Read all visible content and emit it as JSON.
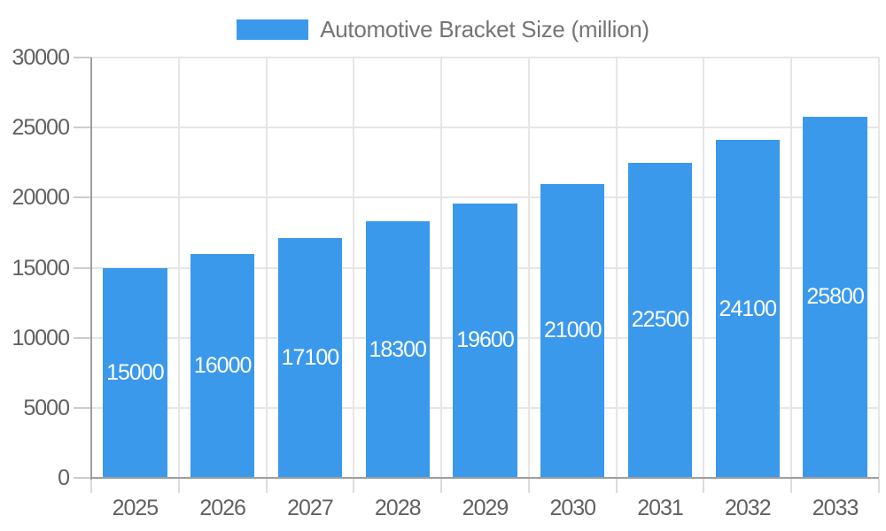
{
  "legend": {
    "label": "Automotive Bracket Size (million)"
  },
  "colors": {
    "bar": "#3B99EC",
    "axis_line": "#9E9E9E",
    "gridline": "#E6E6E6",
    "y_tick": "#CCCCCC",
    "x_tick": "#DCDCDC",
    "axis_label_text": "#616161",
    "legend_text": "#757575",
    "bar_label_text": "#FFFFFF",
    "background": "#FFFFFF"
  },
  "chart_data": {
    "type": "bar",
    "title": "Automotive Bracket Size (million)",
    "series_name": "Automotive Bracket Size (million)",
    "categories": [
      "2025",
      "2026",
      "2027",
      "2028",
      "2029",
      "2030",
      "2031",
      "2032",
      "2033"
    ],
    "values": [
      15000,
      16000,
      17100,
      18300,
      19600,
      21000,
      22500,
      24100,
      25800
    ],
    "bar_labels": [
      "15000",
      "16000",
      "17100",
      "18300",
      "19600",
      "21000",
      "22500",
      "24100",
      "25800"
    ],
    "xlabel": "",
    "ylabel": "",
    "ylim": [
      0,
      30000
    ],
    "y_ticks": [
      0,
      5000,
      10000,
      15000,
      20000,
      25000,
      30000
    ],
    "y_tick_labels": [
      "0",
      "5000",
      "10000",
      "15000",
      "20000",
      "25000",
      "30000"
    ],
    "grid": true,
    "legend_position": "top-center",
    "bar_label_position": "middle-of-bar"
  }
}
